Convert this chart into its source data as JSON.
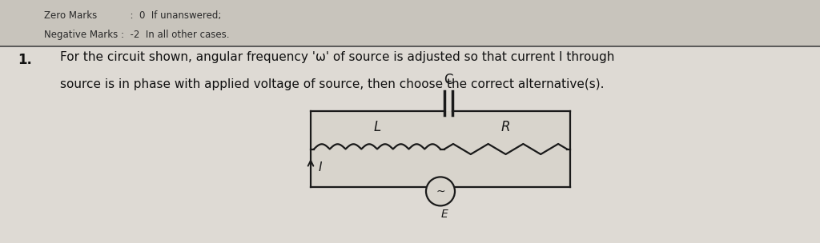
{
  "header_line1": "Zero Marks           :  0  If unanswered;",
  "header_line2": "Negative Marks :  -2  In all other cases.",
  "question_number": "1.",
  "question_text_line1": "For the circuit shown, angular frequency 'ω' of source is adjusted so that current I through",
  "question_text_line2": "source is in phase with applied voltage of source, then choose the correct alternative(s).",
  "bg_color": "#c8c4bc",
  "header_bg": "#c8c4bc",
  "question_bg": "#dedad4",
  "text_color": "#111111",
  "header_text_color": "#2a2a2a",
  "divider_color": "#444444",
  "fig_width": 10.24,
  "fig_height": 3.04,
  "circuit_fill": "#d8d4cc"
}
